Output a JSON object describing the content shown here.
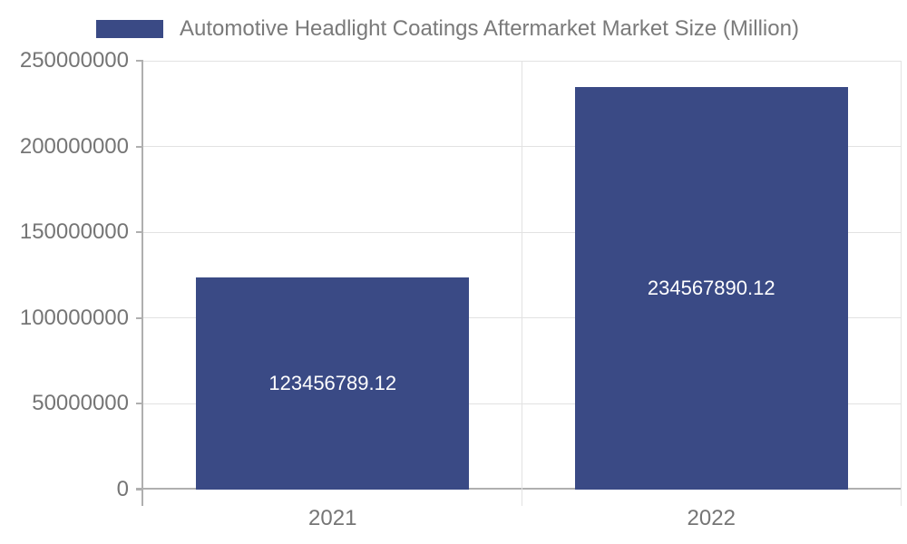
{
  "legend": {
    "label": "Automotive Headlight Coatings Aftermarket Market Size (Million)"
  },
  "chart_data": {
    "type": "bar",
    "title": "Automotive Headlight Coatings Aftermarket Market Size (Million)",
    "series": [
      {
        "name": "Automotive Headlight Coatings Aftermarket Market Size (Million)",
        "values": [
          123456789.12,
          234567890.12
        ]
      }
    ],
    "categories": [
      "2021",
      "2022"
    ],
    "values": [
      123456789.12,
      234567890.12
    ],
    "bar_labels": [
      "123456789.12",
      "234567890.12"
    ],
    "xlabel": "",
    "ylabel": "",
    "ylim": [
      0,
      250000000
    ],
    "yticks": [
      0,
      50000000,
      100000000,
      150000000,
      200000000,
      250000000
    ],
    "grid": true,
    "legend_position": "top-left",
    "colors": {
      "bar": "#3A4A85",
      "bar_label": "#FFFFFF",
      "legend_text": "#7A7A7A",
      "tick_text": "#757575",
      "gridline": "#E2E2E2",
      "axis_line": "#AFAFAF",
      "background": "#FFFFFF"
    }
  }
}
